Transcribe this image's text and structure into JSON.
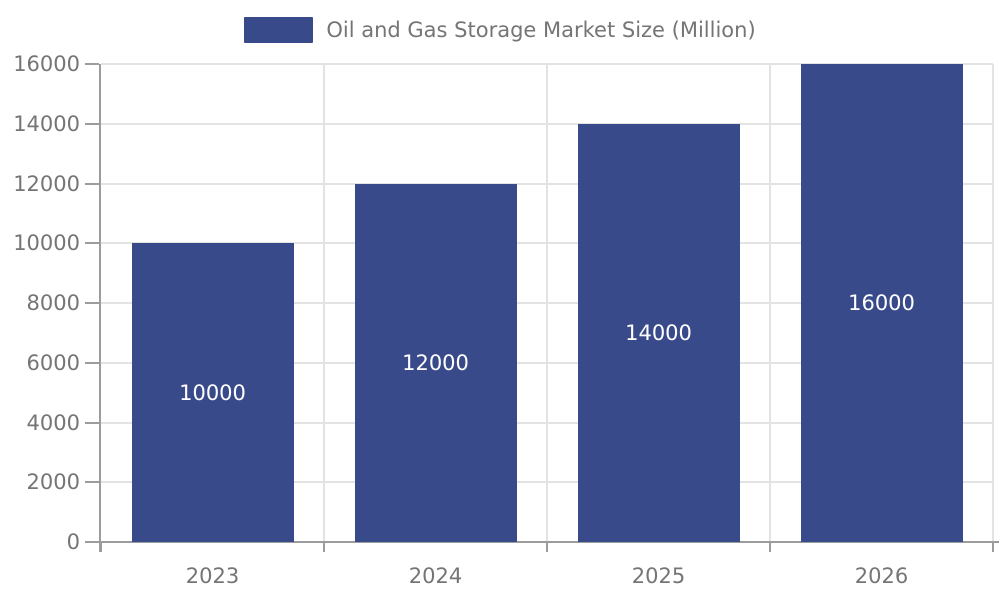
{
  "chart_data": {
    "type": "bar",
    "title": "Oil and Gas Storage Market Size (Million)",
    "categories": [
      "2023",
      "2024",
      "2025",
      "2026"
    ],
    "values": [
      10000,
      12000,
      14000,
      16000
    ],
    "value_labels": [
      "10000",
      "12000",
      "14000",
      "16000"
    ],
    "xlabel": "",
    "ylabel": "",
    "ylim": [
      0,
      16000
    ],
    "yticks": [
      0,
      2000,
      4000,
      6000,
      8000,
      10000,
      12000,
      14000,
      16000
    ],
    "ytick_labels": [
      "0",
      "2000",
      "4000",
      "6000",
      "8000",
      "10000",
      "12000",
      "14000",
      "16000"
    ],
    "grid": true,
    "legend_position": "top-center",
    "colors": {
      "bar": "#394A8B",
      "grid": "#e3e3e3",
      "axis": "#9c9c9c",
      "text": "#757575",
      "value_label": "#ffffff",
      "background": "#ffffff"
    }
  }
}
